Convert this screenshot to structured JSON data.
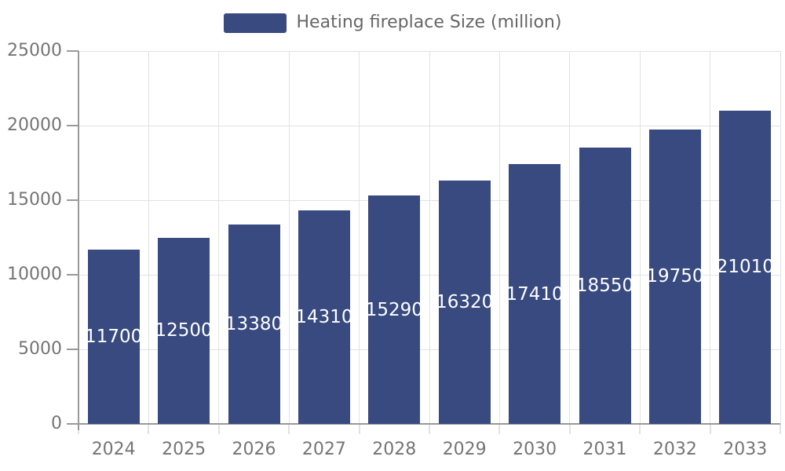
{
  "legend": {
    "label": "Heating fireplace Size (million)"
  },
  "chart_data": {
    "type": "bar",
    "title": "Heating fireplace Size (million)",
    "categories": [
      "2024",
      "2025",
      "2026",
      "2027",
      "2028",
      "2029",
      "2030",
      "2031",
      "2032",
      "2033"
    ],
    "values": [
      11700,
      12500,
      13380,
      14310,
      15290,
      16320,
      17410,
      18550,
      19750,
      21010
    ],
    "series": [
      {
        "name": "Heating fireplace Size (million)",
        "values": [
          11700,
          12500,
          13380,
          14310,
          15290,
          16320,
          17410,
          18550,
          19750,
          21010
        ]
      }
    ],
    "xlabel": "",
    "ylabel": "",
    "ylim": [
      0,
      25000
    ],
    "yticks": [
      0,
      5000,
      10000,
      15000,
      20000,
      25000
    ],
    "grid": "horizontal-and-vertical",
    "legend_position": "top-center",
    "bar_labels": "white, centered vertically inside bars",
    "colors": {
      "bar": "#384a80",
      "grid": "#e2e2e2",
      "axis": "#999999",
      "tick_text": "#757575",
      "bar_label_text": "#ffffff",
      "legend_text": "#666666"
    }
  }
}
